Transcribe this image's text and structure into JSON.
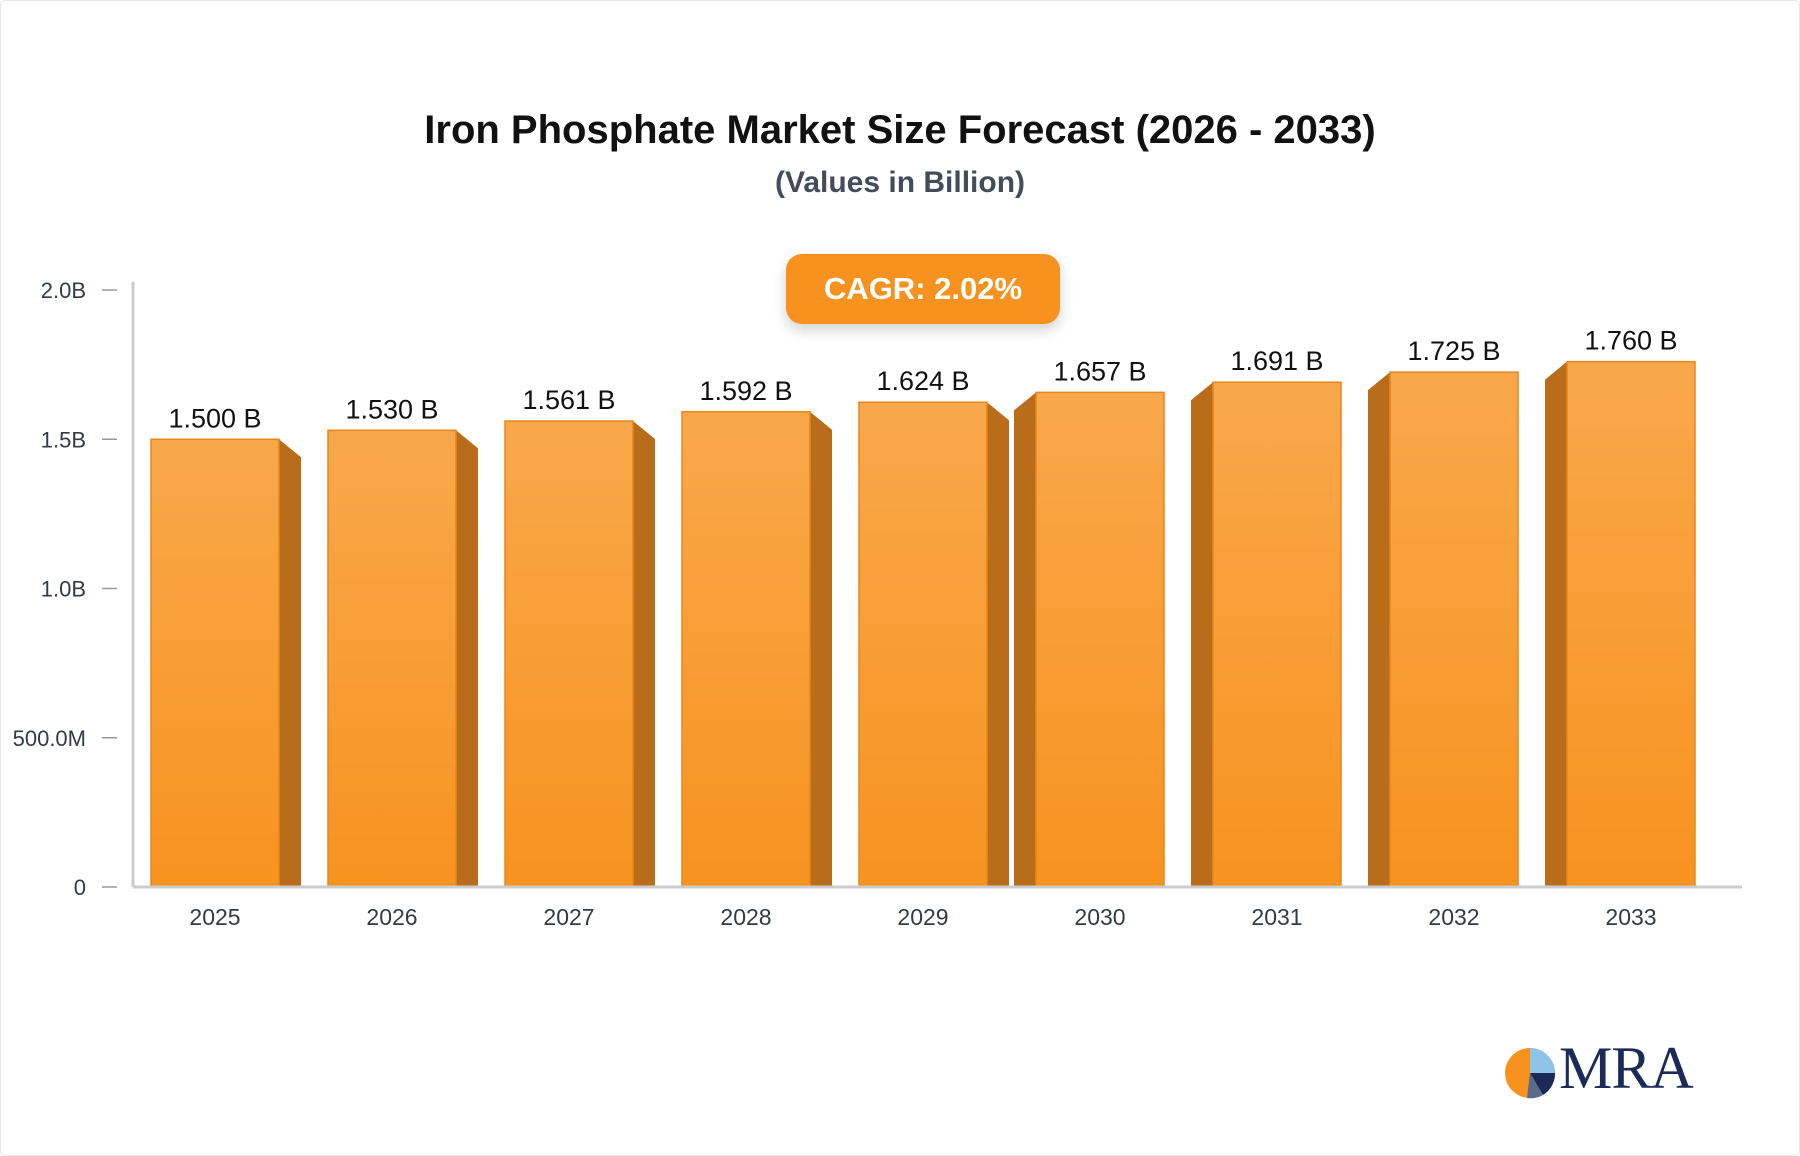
{
  "colors": {
    "bar_front_top": "#f8a84b",
    "bar_front_bottom": "#f7931f",
    "bar_side": "#b96d1a",
    "axis": "#cccccc",
    "badge": "#f7921e"
  },
  "badge": {
    "label": "CAGR:",
    "value": "2.02%"
  },
  "logo": {
    "text": "MRA",
    "icon": "pie-chart-icon"
  },
  "chart_data": {
    "type": "bar",
    "title": "Iron Phosphate Market Size Forecast (2026 - 2033)",
    "subtitle": "(Values in Billion)",
    "xlabel": "",
    "ylabel": "",
    "categories": [
      "2025",
      "2026",
      "2027",
      "2028",
      "2029",
      "2030",
      "2031",
      "2032",
      "2033"
    ],
    "values": [
      1.5,
      1.53,
      1.561,
      1.592,
      1.624,
      1.657,
      1.691,
      1.725,
      1.76
    ],
    "data_labels": [
      "1.500 B",
      "1.530 B",
      "1.561 B",
      "1.592 B",
      "1.624 B",
      "1.657 B",
      "1.691 B",
      "1.725 B",
      "1.760 B"
    ],
    "yticks": [
      0,
      0.5,
      1.0,
      1.5,
      2.0
    ],
    "ytick_labels": [
      "0",
      "500.0M",
      "1.0B",
      "1.5B",
      "2.0B"
    ],
    "ylim": [
      0,
      2.0
    ],
    "grid": false,
    "legend": "none"
  }
}
